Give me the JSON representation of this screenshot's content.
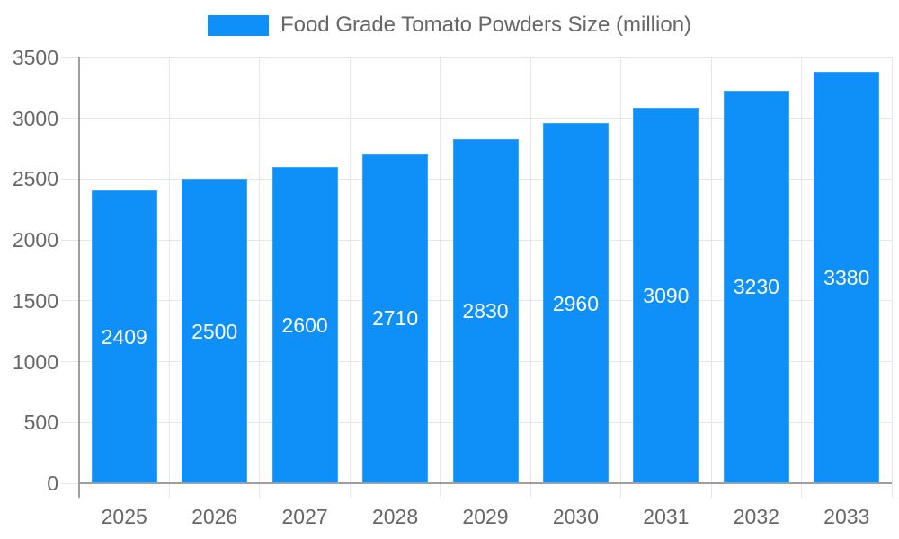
{
  "legend": {
    "label": "Food Grade Tomato Powders Size (million)"
  },
  "chart_data": {
    "type": "bar",
    "title": "Food Grade Tomato Powders Size (million)",
    "categories": [
      "2025",
      "2026",
      "2027",
      "2028",
      "2029",
      "2030",
      "2031",
      "2032",
      "2033"
    ],
    "series": [
      {
        "name": "Food Grade Tomato Powders Size (million)",
        "values": [
          2409,
          2500,
          2600,
          2710,
          2830,
          2960,
          3090,
          3230,
          3380
        ]
      }
    ],
    "bar_value_labels": [
      "2409",
      "2500",
      "2600",
      "2710",
      "2830",
      "2960",
      "3090",
      "3230",
      "3380"
    ],
    "xlabel": "",
    "ylabel": "",
    "ylim": [
      0,
      3500
    ],
    "yticks": [
      0,
      500,
      1000,
      1500,
      2000,
      2500,
      3000,
      3500
    ],
    "grid": true,
    "legend_position": "top"
  },
  "colors": {
    "bar": "#0e90f8",
    "bar_label": "#ffffff",
    "grid_line": "#e6e6e6",
    "axis_line": "#9e9e9e",
    "tick_label": "#666666",
    "legend_text": "#666666",
    "background": "#ffffff"
  }
}
